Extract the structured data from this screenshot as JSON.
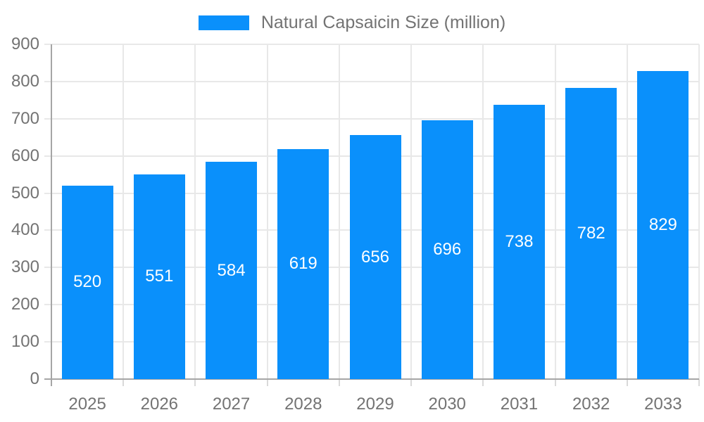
{
  "legend": {
    "label": "Natural Capsaicin Size (million)"
  },
  "colors": {
    "bar": "#0a90fb",
    "grid": "#e8e8e8",
    "axis_line": "#a6a6a6",
    "tick": "#d9d9d9",
    "axis_text": "#737373",
    "value_text": "#ffffff",
    "background": "#ffffff"
  },
  "chart_data": {
    "type": "bar",
    "title": "",
    "categories": [
      "2025",
      "2026",
      "2027",
      "2028",
      "2029",
      "2030",
      "2031",
      "2032",
      "2033"
    ],
    "series": [
      {
        "name": "Natural Capsaicin Size (million)",
        "values": [
          520,
          551,
          584,
          619,
          656,
          696,
          738,
          782,
          829
        ]
      }
    ],
    "value_labels_shown": true,
    "xlabel": "",
    "ylabel": "",
    "ylim": [
      0,
      900
    ],
    "ytick_step": 100,
    "ytick_labels": [
      "0",
      "100",
      "200",
      "300",
      "400",
      "500",
      "600",
      "700",
      "800",
      "900"
    ],
    "grid": true,
    "legend_position": "top"
  }
}
